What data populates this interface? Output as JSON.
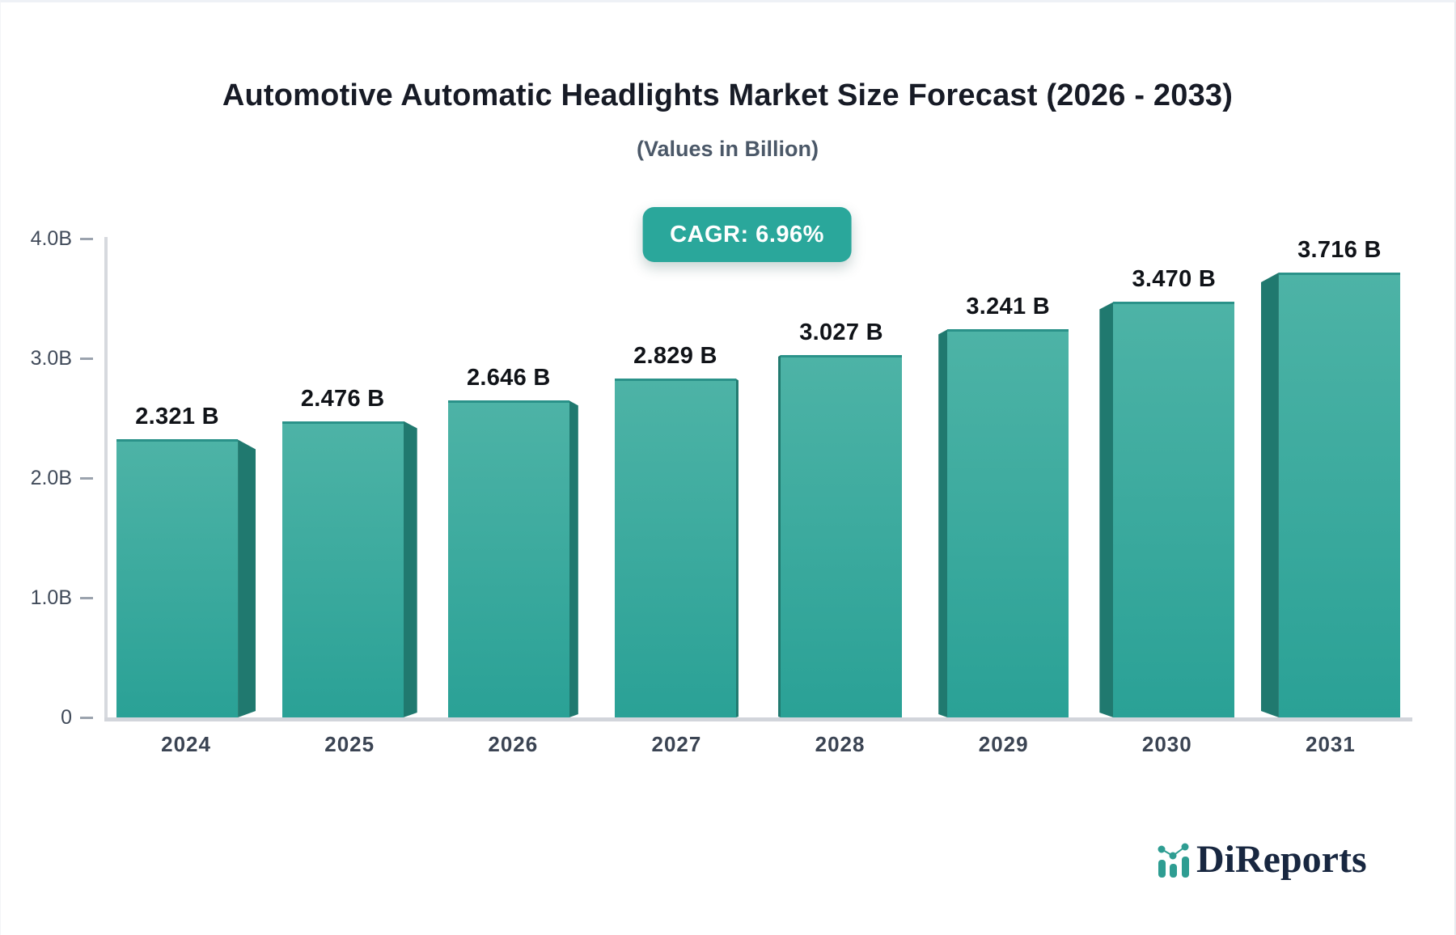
{
  "header": {
    "title": "Automotive Automatic Headlights Market Size Forecast (2026 - 2033)",
    "subtitle": "(Values in Billion)",
    "badge": "CAGR: 6.96%"
  },
  "watermark": {
    "brand": "DiReports",
    "icon": "mini-bar-chart-icon"
  },
  "chart_data": {
    "type": "bar",
    "title": "Automotive Automatic Headlights Market Size Forecast (2026 - 2033)",
    "subtitle": "(Values in Billion)",
    "unit": "Billion",
    "cagr": "6.96%",
    "categories": [
      "2024",
      "2025",
      "2026",
      "2027",
      "2028",
      "2029",
      "2030",
      "2031"
    ],
    "values": [
      2.321,
      2.476,
      2.646,
      2.829,
      3.027,
      3.241,
      3.47,
      3.716
    ],
    "value_labels": [
      "2.321 B",
      "2.476 B",
      "2.646 B",
      "2.829 B",
      "3.027 B",
      "3.241 B",
      "3.470 B",
      "3.716 B"
    ],
    "y_ticks": [
      {
        "label": "4.0B",
        "value": 4.0
      },
      {
        "label": "3.0B",
        "value": 3.0
      },
      {
        "label": "2.0B",
        "value": 2.0
      },
      {
        "label": "1.0B",
        "value": 1.0
      },
      {
        "label": "0",
        "value": 0.0
      }
    ],
    "ylim": [
      0,
      4
    ],
    "xlabel": "",
    "ylabel": "",
    "grid": "off",
    "legend": "none",
    "colors": {
      "bar_face_top": "#4db3a6",
      "bar_face_bottom": "#2aa196",
      "bar_top_edge": "#2a9289",
      "bar_side": "#20796f",
      "badge_bg": "#2aa79b",
      "axis_line": "#d6d9de",
      "tick_text": "#414b5a",
      "year_text": "#3b4453",
      "value_text": "#101318",
      "title_text": "#171b26",
      "subtitle_text": "#4b5868",
      "brand_text": "#182740",
      "brand_teal": "#2e9d92"
    }
  }
}
